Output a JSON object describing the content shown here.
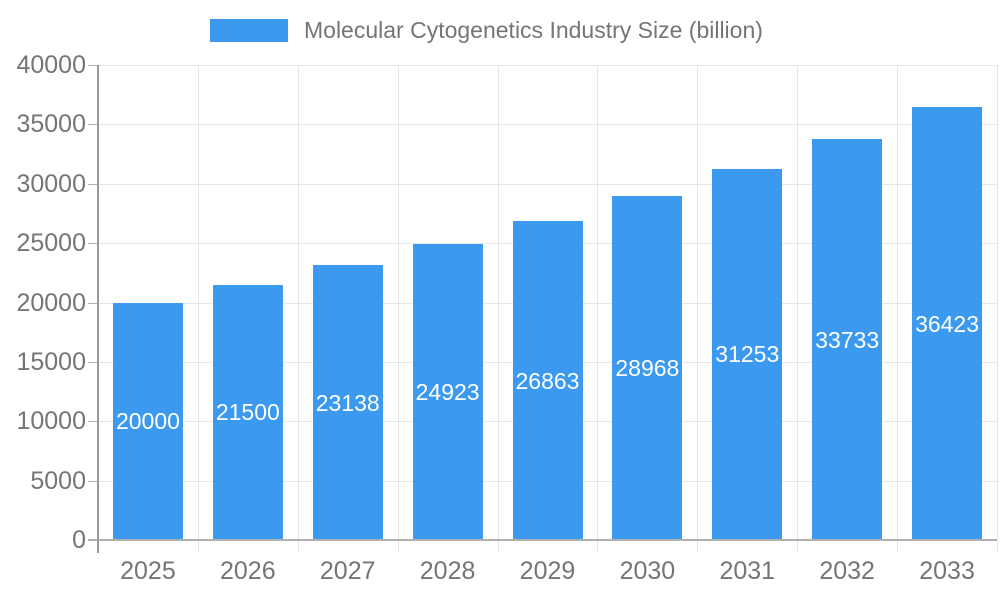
{
  "legend": {
    "label": "Molecular Cytogenetics Industry Size (billion)"
  },
  "colors": {
    "bar": "#3B99F0",
    "grid": "#E6E6E6",
    "y_axis": "#9A9A9A",
    "baseline": "#B0B0B0",
    "tick_dash": "#B2B2B2",
    "tick_text": "#757575",
    "value_text": "#FFFFFF",
    "background": "#FFFFFF"
  },
  "chart_data": {
    "type": "bar",
    "title": "Molecular Cytogenetics Industry Size (billion)",
    "categories": [
      "2025",
      "2026",
      "2027",
      "2028",
      "2029",
      "2030",
      "2031",
      "2032",
      "2033"
    ],
    "values": [
      20000,
      21500,
      23138,
      24923,
      26863,
      28968,
      31253,
      33733,
      36423
    ],
    "series": [
      {
        "name": "Molecular Cytogenetics Industry Size (billion)",
        "values": [
          20000,
          21500,
          23138,
          24923,
          26863,
          28968,
          31253,
          33733,
          36423
        ]
      }
    ],
    "xlabel": "",
    "ylabel": "",
    "ylim": [
      0,
      40000
    ],
    "yticks": [
      0,
      5000,
      10000,
      15000,
      20000,
      25000,
      30000,
      35000,
      40000
    ],
    "grid": true,
    "legend_position": "top",
    "value_labels": "inside-center"
  }
}
